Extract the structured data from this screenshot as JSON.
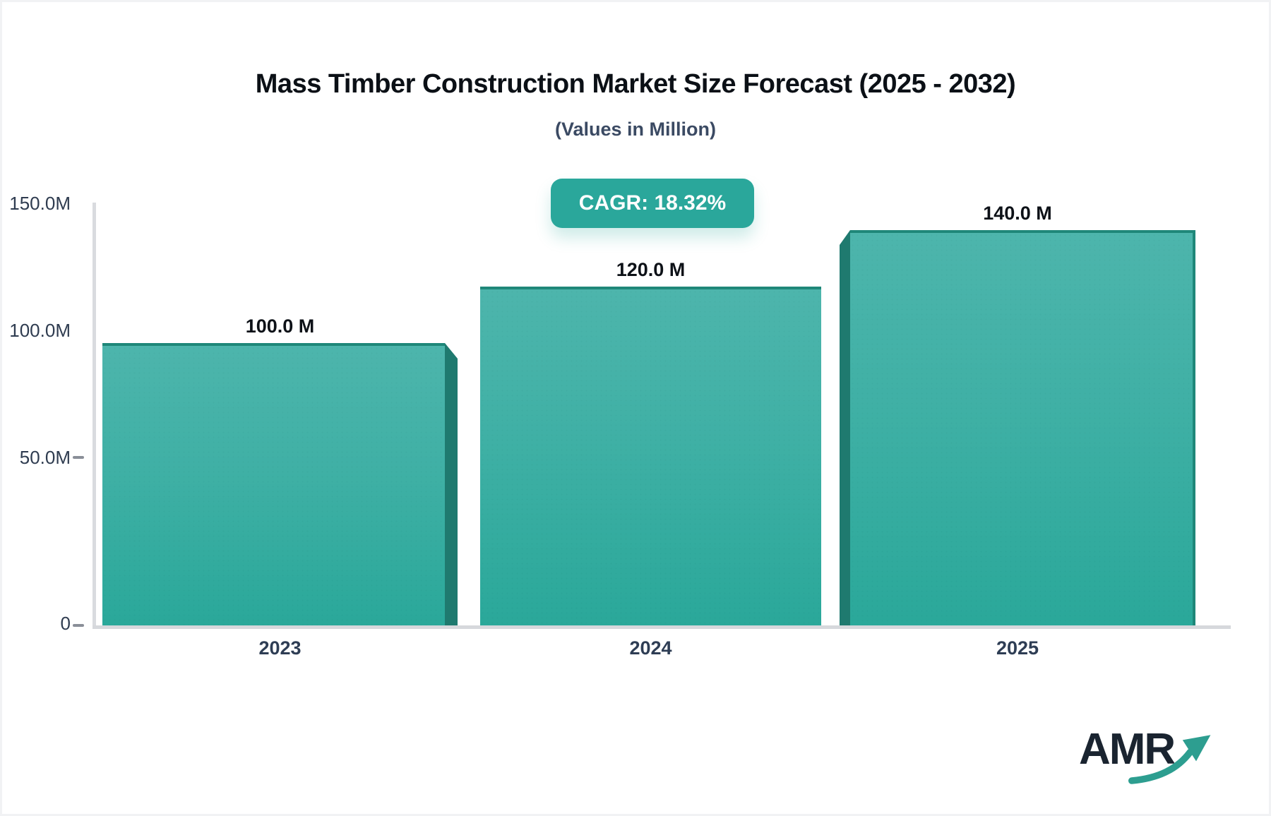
{
  "chart_data": {
    "type": "bar",
    "title": "Mass Timber Construction Market Size Forecast (2025 - 2032)",
    "subtitle": "(Values in Million)",
    "cagr_label": "CAGR: 18.32%",
    "categories": [
      "2023",
      "2024",
      "2025"
    ],
    "values": [
      100.0,
      120.0,
      140.0
    ],
    "bar_labels": [
      "100.0 M",
      "120.0 M",
      "140.0 M"
    ],
    "unit": "Million",
    "xlabel": "",
    "ylabel": "",
    "ylim": [
      0,
      150
    ],
    "y_ticks": [
      "150.0M",
      "100.0M",
      "50.0M",
      "0"
    ],
    "grid": false,
    "legend": false,
    "colors": {
      "bar_gradient_top": "#4db5ac",
      "bar_gradient_bottom": "#2aa89a",
      "bar_side_3d": "#1f7a6f",
      "bar_top_edge": "#1f8779",
      "badge_background": "#2aa79b",
      "axis_line": "#d9dbdf",
      "tick_text": "#2f3c50"
    }
  },
  "logo": {
    "text": "AMR"
  }
}
